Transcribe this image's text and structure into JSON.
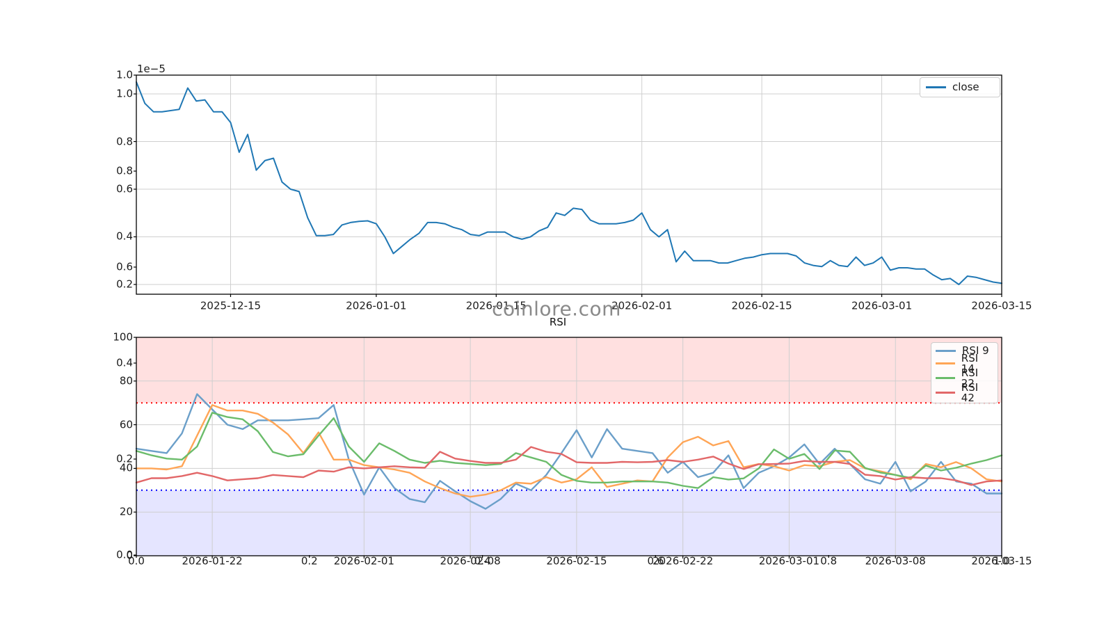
{
  "watermark": "coinlore.com",
  "price_chart": {
    "offset_label": "1e−5",
    "legend": {
      "label": "close",
      "color": "#1f77b4"
    }
  },
  "rsi_chart": {
    "title": "RSI",
    "legend": [
      {
        "label": "RSI 9",
        "color": "#6b9fc9"
      },
      {
        "label": "RSI 14",
        "color": "#ffa556"
      },
      {
        "label": "RSI 22",
        "color": "#6bbc6b"
      },
      {
        "label": "RSI 42",
        "color": "#e26768"
      }
    ]
  },
  "overlay_axis": {
    "x_tick_labels": [
      "0.0",
      "0.2",
      "0.4",
      "0.6",
      "0.8",
      "1.0"
    ],
    "y_tick_labels": [
      "1.0",
      "0.8",
      "0.6",
      "0.4",
      "0.2",
      "0.0"
    ]
  },
  "chart_data": [
    {
      "type": "line",
      "title": "",
      "x_start": "2025-12-04",
      "x_end": "2026-03-15",
      "x_tick_labels": [
        "2025-12-15",
        "2026-01-01",
        "2026-01-15",
        "2026-02-01",
        "2026-02-15",
        "2026-03-01",
        "2026-03-15"
      ],
      "x_tick_days": [
        11,
        28,
        42,
        59,
        73,
        87,
        101
      ],
      "ylabel": "",
      "y_unit": "1e-5",
      "ylim": [
        0.159,
        1.079
      ],
      "y_ticks": [
        1.0,
        0.8,
        0.6,
        0.4,
        0.2
      ],
      "grid": true,
      "legend_position": "upper right",
      "series": [
        {
          "name": "close",
          "color": "#1f77b4",
          "values": [
            1.05,
            0.96,
            0.925,
            0.925,
            0.93,
            0.935,
            1.025,
            0.97,
            0.975,
            0.925,
            0.925,
            0.88,
            0.755,
            0.83,
            0.68,
            0.72,
            0.73,
            0.63,
            0.6,
            0.59,
            0.48,
            0.405,
            0.405,
            0.41,
            0.45,
            0.46,
            0.465,
            0.467,
            0.455,
            0.4,
            0.33,
            0.36,
            0.39,
            0.415,
            0.46,
            0.46,
            0.455,
            0.44,
            0.43,
            0.41,
            0.405,
            0.42,
            0.42,
            0.42,
            0.4,
            0.39,
            0.4,
            0.425,
            0.44,
            0.5,
            0.49,
            0.52,
            0.515,
            0.47,
            0.455,
            0.455,
            0.455,
            0.46,
            0.47,
            0.5,
            0.43,
            0.4,
            0.43,
            0.295,
            0.34,
            0.3,
            0.3,
            0.3,
            0.29,
            0.29,
            0.3,
            0.31,
            0.315,
            0.325,
            0.33,
            0.33,
            0.33,
            0.32,
            0.29,
            0.28,
            0.275,
            0.3,
            0.28,
            0.275,
            0.315,
            0.28,
            0.29,
            0.315,
            0.26,
            0.27,
            0.27,
            0.265,
            0.265,
            0.24,
            0.22,
            0.225,
            0.2,
            0.235,
            0.23,
            0.22,
            0.21,
            0.205
          ]
        }
      ]
    },
    {
      "type": "line",
      "title": "RSI",
      "x_start": "2026-01-17",
      "x_end": "2026-03-15",
      "x_tick_labels": [
        "2026-01-22",
        "2026-02-01",
        "2026-02-08",
        "2026-02-15",
        "2026-02-22",
        "2026-03-01",
        "2026-03-08",
        "2026-03-15"
      ],
      "x_tick_days": [
        5,
        15,
        22,
        29,
        36,
        43,
        50,
        57
      ],
      "ylim": [
        0,
        100
      ],
      "y_ticks": [
        100,
        80,
        60,
        40,
        20,
        0
      ],
      "grid": true,
      "overbought_level": 70,
      "oversold_level": 30,
      "overbought_line_color": "#ff0000",
      "oversold_line_color": "#0000ff",
      "overbought_band_color": "rgba(255,0,0,0.12)",
      "oversold_band_color": "rgba(0,0,255,0.10)",
      "legend_position": "upper right",
      "series": [
        {
          "name": "RSI 9",
          "color": "#6b9fc9",
          "values": [
            49,
            48,
            47,
            56,
            74,
            67,
            60,
            58,
            62,
            62,
            62,
            62.5,
            63,
            69,
            44,
            28,
            40.5,
            31,
            26,
            24.5,
            34.3,
            29.5,
            25,
            21.5,
            26,
            33,
            30,
            37,
            47,
            57.5,
            45,
            58,
            49,
            48,
            47,
            38,
            43,
            36,
            38,
            46,
            31,
            38,
            41,
            45,
            51,
            42,
            49,
            42,
            35,
            33,
            43,
            29.5,
            34,
            43,
            34,
            33,
            28.5,
            28.5
          ]
        },
        {
          "name": "RSI 14",
          "color": "#ffa556",
          "values": [
            40,
            40,
            39.5,
            41,
            55,
            69,
            66.5,
            66.5,
            65,
            61,
            55.5,
            47,
            56.5,
            44,
            44,
            41.5,
            40.5,
            39.5,
            38,
            34,
            31,
            28.5,
            27,
            28,
            30,
            33.5,
            33,
            36,
            33.5,
            35,
            40.5,
            31.5,
            33,
            34.5,
            34,
            45,
            52,
            54.5,
            50.5,
            52.5,
            40.5,
            42,
            41,
            39,
            41.5,
            41,
            43,
            43.8,
            40,
            38.7,
            37,
            35,
            42,
            40.5,
            42.9,
            40,
            35,
            34
          ]
        },
        {
          "name": "RSI 22",
          "color": "#6bbc6b",
          "values": [
            48,
            46,
            44.5,
            44,
            50,
            65.5,
            63.5,
            62.5,
            57,
            47.5,
            45.5,
            46.5,
            55,
            63,
            50,
            43,
            51.5,
            48,
            44,
            42.5,
            43.5,
            42.5,
            42,
            41.5,
            42,
            47,
            45,
            43,
            37,
            34.3,
            33.5,
            33.5,
            34,
            34,
            34,
            33.5,
            32,
            31,
            36,
            34.9,
            35.4,
            40,
            48.7,
            44.4,
            46.6,
            39.7,
            48.2,
            47.6,
            40.2,
            38.1,
            37,
            35.6,
            41.3,
            39,
            40.3,
            42.2,
            43.8,
            46
          ]
        },
        {
          "name": "RSI 42",
          "color": "#e26768",
          "values": [
            33.5,
            35.5,
            35.5,
            36.5,
            38,
            36.5,
            34.5,
            35,
            35.5,
            37,
            36.5,
            36,
            39,
            38.5,
            40.5,
            40,
            40.5,
            41,
            40.5,
            40.3,
            47.6,
            44.5,
            43.4,
            42.5,
            42.5,
            44,
            49.8,
            47.6,
            46.6,
            42.8,
            42.5,
            42.5,
            43,
            42.8,
            43,
            43.8,
            43,
            44,
            45.4,
            42.2,
            39.7,
            41.9,
            42,
            42.2,
            43.4,
            43,
            43,
            42,
            37.1,
            36.5,
            34.9,
            36,
            35.5,
            35.5,
            34.5,
            32.4,
            34,
            34.5
          ]
        }
      ]
    }
  ]
}
